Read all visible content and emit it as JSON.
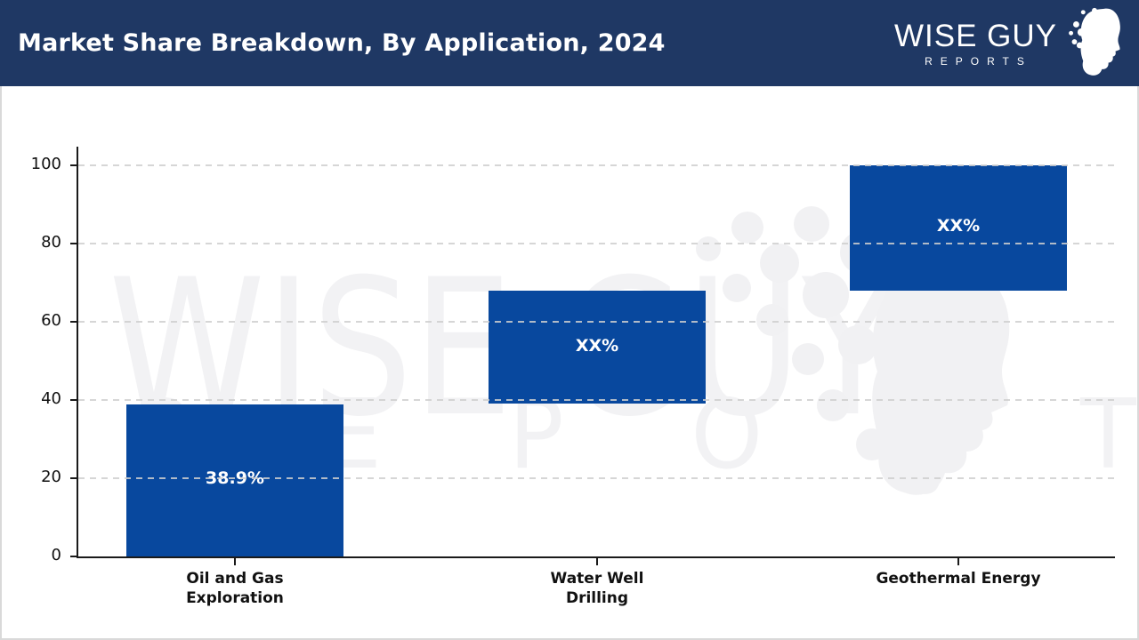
{
  "header": {
    "title": "Market Share Breakdown, By Application, 2024",
    "background_color": "#1F3864",
    "logo": {
      "line1": "WISE GUY",
      "line2": "REPORTS"
    }
  },
  "watermark": {
    "line1": "WISE GUY",
    "line2": "REPORTS"
  },
  "colors": {
    "bar": "#08489E",
    "bar_label": "#FFFFFF",
    "axis": "#1A1A1A",
    "gridline": "#CFCFCF",
    "watermark": "#F2F2F4",
    "edge_line": "#D9D9D9"
  },
  "chart_data": {
    "type": "bar",
    "variant": "waterfall",
    "title": "Market Share Breakdown, By Application, 2024",
    "xlabel": "",
    "ylabel": "",
    "categories": [
      "Oil and Gas\nExploration",
      "Water Well\nDrilling",
      "Geothermal Energy"
    ],
    "segments": [
      {
        "category": "Oil and Gas Exploration",
        "start": 0,
        "end": 38.9,
        "label": "38.9%"
      },
      {
        "category": "Water Well Drilling",
        "start": 39.0,
        "end": 68.0,
        "label": "XX%"
      },
      {
        "category": "Geothermal Energy",
        "start": 68.0,
        "end": 100,
        "label": "XX%"
      }
    ],
    "yticks": [
      0,
      20,
      40,
      60,
      80,
      100
    ],
    "ylim": [
      0,
      104.8
    ],
    "grid": "dashed-horizontal",
    "legend": "none",
    "bar_color": "#08489E"
  }
}
